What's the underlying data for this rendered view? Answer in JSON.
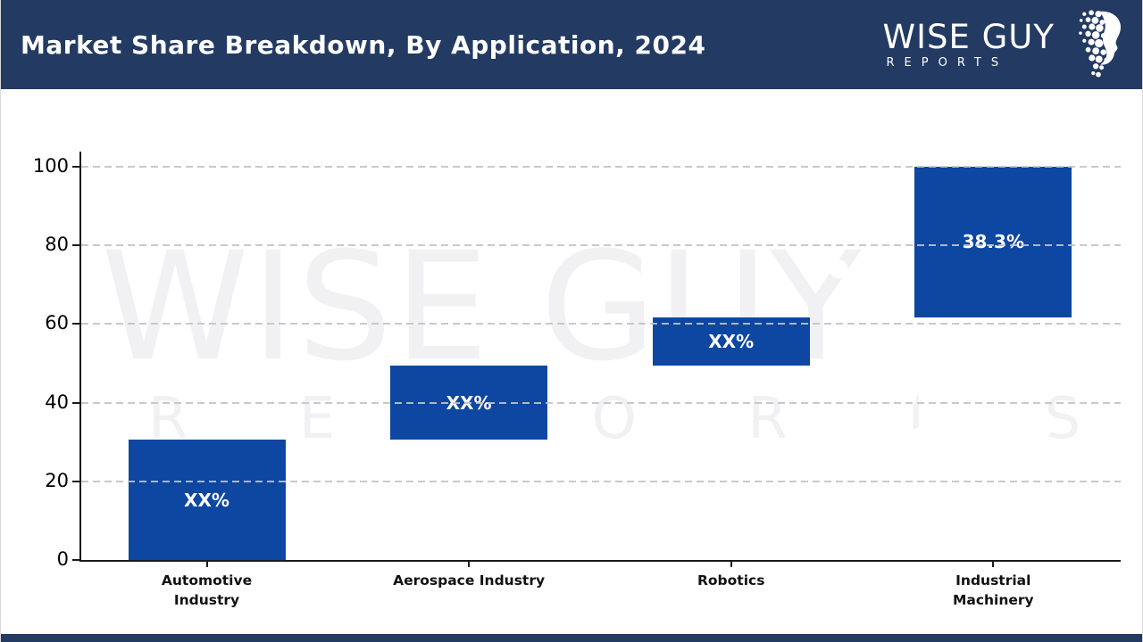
{
  "header": {
    "title": "Market Share Breakdown, By Application, 2024",
    "logo": {
      "line1": "WISE GUY",
      "line2": "REPORTS"
    }
  },
  "watermark": {
    "line1": "WISE GUY",
    "line2": "R E P O R T S"
  },
  "colors": {
    "header_navy": "#233a63",
    "bar_blue": "#0d47a1",
    "watermark_gray": "#f1f1f4",
    "gridline": "rgba(195,195,195,0.9)",
    "axis": "#1a1a1a",
    "bar_label_text": "#ffffff"
  },
  "chart_data": {
    "type": "bar",
    "subtype": "waterfall",
    "title": "Market Share Breakdown, By Application, 2024",
    "categories": [
      "Automotive Industry",
      "Aerospace Industry",
      "Robotics",
      "Industrial Machinery"
    ],
    "category_label_lines": [
      [
        "Automotive",
        "Industry"
      ],
      [
        "Aerospace Industry"
      ],
      [
        "Robotics"
      ],
      [
        "Industrial",
        "Machinery"
      ]
    ],
    "series": [
      {
        "name": "Market Share %",
        "starts": [
          0,
          30.5,
          49.5,
          61.7
        ],
        "values": [
          30.5,
          19.0,
          12.2,
          38.3
        ]
      }
    ],
    "bar_labels": [
      "XX%",
      "XX%",
      "XX%",
      "38.3%"
    ],
    "xlabel": "",
    "ylabel": "",
    "ylim": [
      0,
      100
    ],
    "yticks": [
      0,
      20,
      40,
      60,
      80,
      100
    ],
    "grid": "horizontal dashed, drawn above bars",
    "legend": "none"
  }
}
